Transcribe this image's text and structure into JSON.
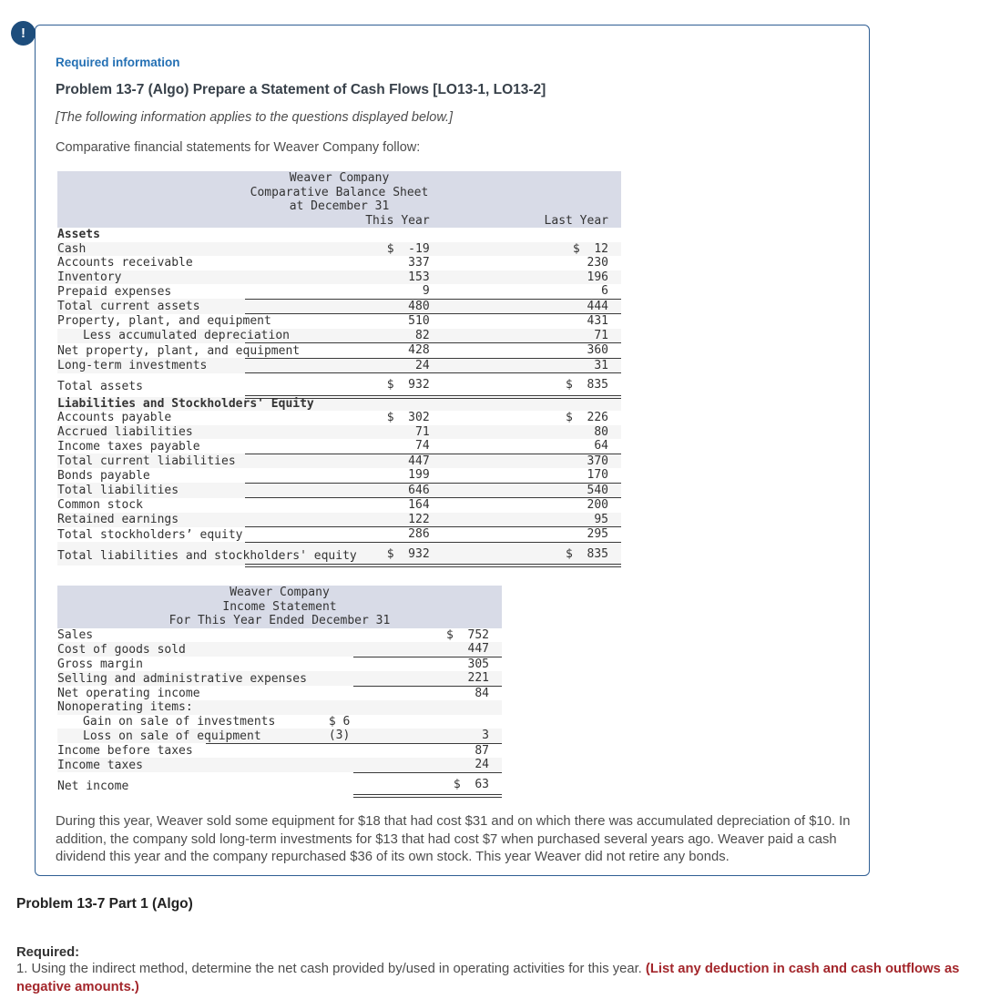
{
  "alert": {
    "glyph": "!"
  },
  "header": {
    "kicker": "Required information",
    "title": "Problem 13-7 (Algo) Prepare a Statement of Cash Flows [LO13-1, LO13-2]",
    "subtitle": "[The following information applies to the questions displayed below.]",
    "intro": "Comparative financial statements for Weaver Company follow:"
  },
  "balance_sheet": {
    "title_lines": [
      "Weaver Company",
      "Comparative Balance Sheet",
      "at December 31"
    ],
    "col_headers": [
      "This Year",
      "Last Year"
    ],
    "rows": [
      {
        "label": "Assets",
        "bold": true
      },
      {
        "label": "Cash",
        "v1": "$  -19",
        "v2": "$  12"
      },
      {
        "label": "Accounts receivable",
        "v1": "337",
        "v2": "230"
      },
      {
        "label": "Inventory",
        "v1": "153",
        "v2": "196"
      },
      {
        "label": "Prepaid expenses",
        "v1": "9",
        "v2": "6",
        "v1_ul": true,
        "v2_ul": true
      },
      {
        "label": "Total current assets",
        "v1": "480",
        "v2": "444",
        "v1_ul": true,
        "v2_ul": true
      },
      {
        "label": "Property, plant, and equipment",
        "v1": "510",
        "v2": "431"
      },
      {
        "label": "Less accumulated depreciation",
        "indent": true,
        "v1": "82",
        "v2": "71",
        "v1_ul": true,
        "v2_ul": true
      },
      {
        "label": "Net property, plant, and equipment",
        "v1": "428",
        "v2": "360",
        "v1_ul": true,
        "v2_ul": true
      },
      {
        "label": "Long-term investments",
        "v1": "24",
        "v2": "31",
        "v1_ul": true,
        "v2_ul": true
      },
      {
        "label": "Total assets",
        "tall": true,
        "v1": "$  932",
        "v2": "$  835",
        "v1_dul": true,
        "v2_dul": true
      },
      {
        "label": "Liabilities and Stockholders' Equity",
        "bold": true
      },
      {
        "label": "Accounts payable",
        "v1": "$  302",
        "v2": "$  226"
      },
      {
        "label": "Accrued liabilities",
        "v1": "71",
        "v2": "80"
      },
      {
        "label": "Income taxes payable",
        "v1": "74",
        "v2": "64",
        "v1_ul": true,
        "v2_ul": true
      },
      {
        "label": "Total current liabilities",
        "v1": "447",
        "v2": "370"
      },
      {
        "label": "Bonds payable",
        "v1": "199",
        "v2": "170",
        "v1_ul": true,
        "v2_ul": true
      },
      {
        "label": "Total liabilities",
        "v1": "646",
        "v2": "540",
        "v1_ul": true,
        "v2_ul": true
      },
      {
        "label": "Common stock",
        "v1": "164",
        "v2": "200"
      },
      {
        "label": "Retained earnings",
        "v1": "122",
        "v2": "95",
        "v1_ul": true,
        "v2_ul": true
      },
      {
        "label": "Total stockholders’ equity",
        "v1": "286",
        "v2": "295",
        "v1_ul": true,
        "v2_ul": true
      },
      {
        "label": "Total liabilities and stockholders' equity",
        "tall": true,
        "v1": "$  932",
        "v2": "$  835",
        "v1_dul": true,
        "v2_dul": true
      }
    ]
  },
  "income_statement": {
    "title_lines": [
      "Weaver Company",
      "Income Statement",
      "For This Year Ended December 31"
    ],
    "rows": [
      {
        "label": "Sales",
        "v2": "$  752"
      },
      {
        "label": "Cost of goods sold",
        "v2": "447",
        "v2_ul": true
      },
      {
        "label": "Gross margin",
        "v2": "305"
      },
      {
        "label": "Selling and administrative expenses",
        "v2": "221",
        "v2_ul": true
      },
      {
        "label": "Net operating income",
        "v2": "84"
      },
      {
        "label": "Nonoperating items:"
      },
      {
        "label": "Gain on sale of investments",
        "indent": true,
        "v1": "$ 6"
      },
      {
        "label": "Loss on sale of equipment",
        "indent": true,
        "v1": "(3)",
        "v2": "3",
        "v1_ul": true,
        "v2_ul": true
      },
      {
        "label": "Income before taxes",
        "v2": "87"
      },
      {
        "label": "Income taxes",
        "v2": "24",
        "v2_ul": true
      },
      {
        "label": "Net income",
        "tall": true,
        "v2": "$  63",
        "v2_dul": true
      }
    ]
  },
  "narrative": "During this year, Weaver sold some equipment for $18 that had cost $31 and on which there was accumulated depreciation of $10. In addition, the company sold long-term investments for $13 that had cost $7 when purchased several years ago. Weaver paid a cash dividend this year and the company repurchased $36 of its own stock. This year Weaver did not retire any bonds.",
  "part_heading": "Problem 13-7 Part 1 (Algo)",
  "required": {
    "label": "Required:",
    "item_text": "1. Using the indirect method, determine the net cash provided by/used in operating activities for this year. ",
    "item_emphasis": "(List any deduction in cash and cash outflows as negative amounts.)"
  },
  "colors": {
    "accent_blue": "#2470b4",
    "panel_border": "#2f5e93",
    "badge_bg": "#1d4d7c",
    "header_bg": "#d8dbe7",
    "stripe": "#f5f5f5",
    "emphasis_red": "#a3262b",
    "rule": "#3a3a3a"
  }
}
